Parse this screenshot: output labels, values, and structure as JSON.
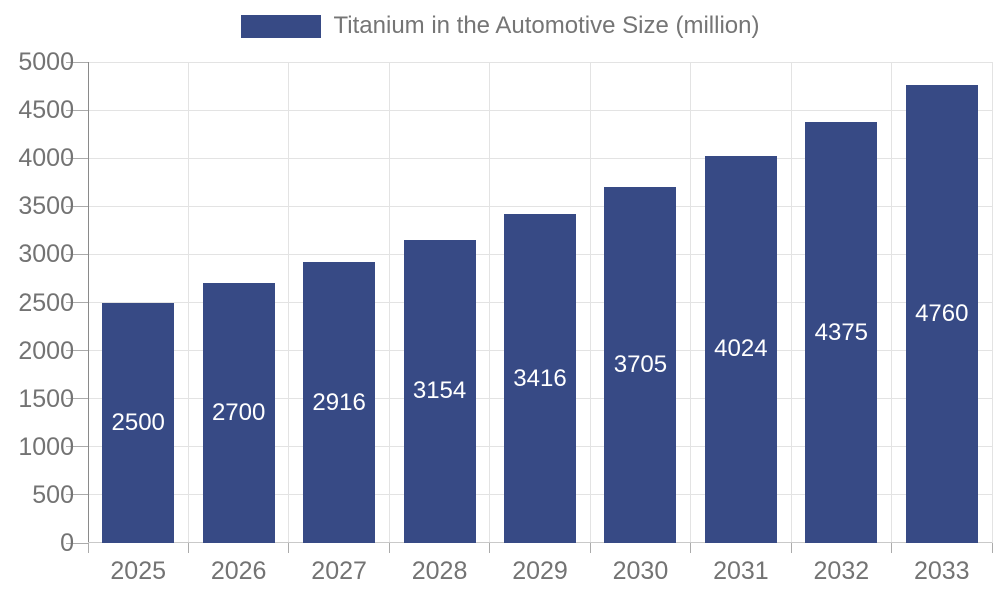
{
  "legend": {
    "label": "Titanium in the Automotive Size (million)"
  },
  "chart_data": {
    "type": "bar",
    "title": "Titanium in the Automotive Size (million)",
    "categories": [
      "2025",
      "2026",
      "2027",
      "2028",
      "2029",
      "2030",
      "2031",
      "2032",
      "2033"
    ],
    "series": [
      {
        "name": "Titanium in the Automotive Size (million)",
        "values": [
          2500,
          2700,
          2916,
          3154,
          3416,
          3705,
          4024,
          4375,
          4760
        ]
      }
    ],
    "xlabel": "",
    "ylabel": "",
    "ylim": [
      0,
      5000
    ],
    "yticks": [
      0,
      500,
      1000,
      1500,
      2000,
      2500,
      3000,
      3500,
      4000,
      4500,
      5000
    ],
    "grid": true,
    "legend_position": "top",
    "value_label_position": "inside-center",
    "colors": {
      "bar": "#374A85",
      "bar_label": "#FFFFFF",
      "grid": "#E3E3E3",
      "y_axis_line": "#8A8A8A",
      "x_axis_line": "#C9C9C9",
      "tick": "#ABABAB",
      "axis_label": "#737373",
      "legend_text": "#757575",
      "background": "#FFFFFF"
    }
  }
}
